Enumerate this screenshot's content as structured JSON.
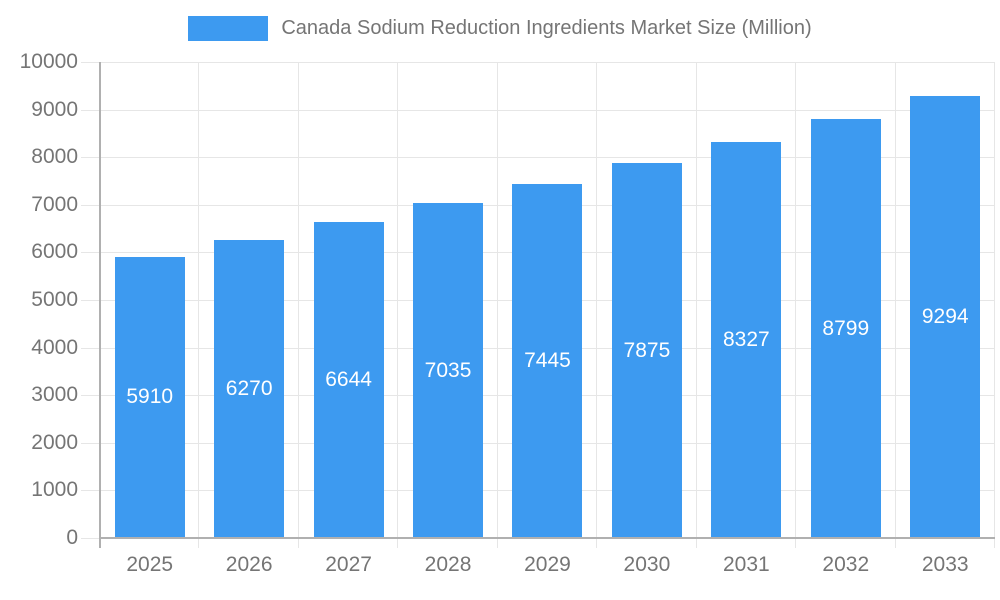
{
  "chart_data": {
    "type": "bar",
    "title": "Canada Sodium Reduction Ingredients Market Size (Million)",
    "categories": [
      "2025",
      "2026",
      "2027",
      "2028",
      "2029",
      "2030",
      "2031",
      "2032",
      "2033"
    ],
    "values": [
      5910,
      6270,
      6644,
      7035,
      7445,
      7875,
      8327,
      8799,
      9294
    ],
    "xlabel": "",
    "ylabel": "",
    "ylim": [
      0,
      10000
    ],
    "ytick_step": 1000,
    "grid": true,
    "legend_position": "top",
    "bar_label_position": "center-inside"
  },
  "colors": {
    "bar": "#3d9af0",
    "bar_label_text": "#ffffff",
    "axis_text": "#757575",
    "grid_line": "#e6e6e6",
    "axis_line": "#b0b0b0",
    "background": "#ffffff"
  }
}
